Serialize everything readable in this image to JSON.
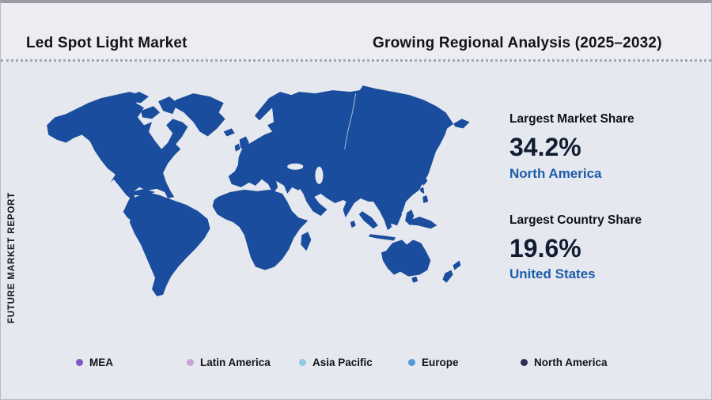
{
  "header": {
    "title_left": "Led Spot Light Market",
    "title_right": "Growing Regional Analysis (2025–2032)"
  },
  "watermark": "FUTURE MARKET REPORT",
  "stats": [
    {
      "label": "Largest Market Share",
      "value": "34.2%",
      "region": "North America"
    },
    {
      "label": "Largest Country Share",
      "value": "19.6%",
      "region": "United States"
    }
  ],
  "legend": [
    {
      "label": "MEA",
      "color": "#7e57c2"
    },
    {
      "label": "Latin America",
      "color": "#c9a3d7"
    },
    {
      "label": "Asia Pacific",
      "color": "#8ec9e2"
    },
    {
      "label": "Europe",
      "color": "#4e9bd8"
    },
    {
      "label": "North America",
      "color": "#2c3057"
    }
  ],
  "map": {
    "name": "world-map",
    "fill": "#1a4d9e",
    "sea": "#e6e8ef"
  },
  "chart_data": {
    "type": "table",
    "title": "Led Spot Light Market — Growing Regional Analysis (2025–2032)",
    "regions": [
      "MEA",
      "Latin America",
      "Asia Pacific",
      "Europe",
      "North America"
    ],
    "highlights": [
      {
        "metric": "Largest Market Share",
        "value_pct": 34.2,
        "entity": "North America"
      },
      {
        "metric": "Largest Country Share",
        "value_pct": 19.6,
        "entity": "United States"
      }
    ]
  }
}
